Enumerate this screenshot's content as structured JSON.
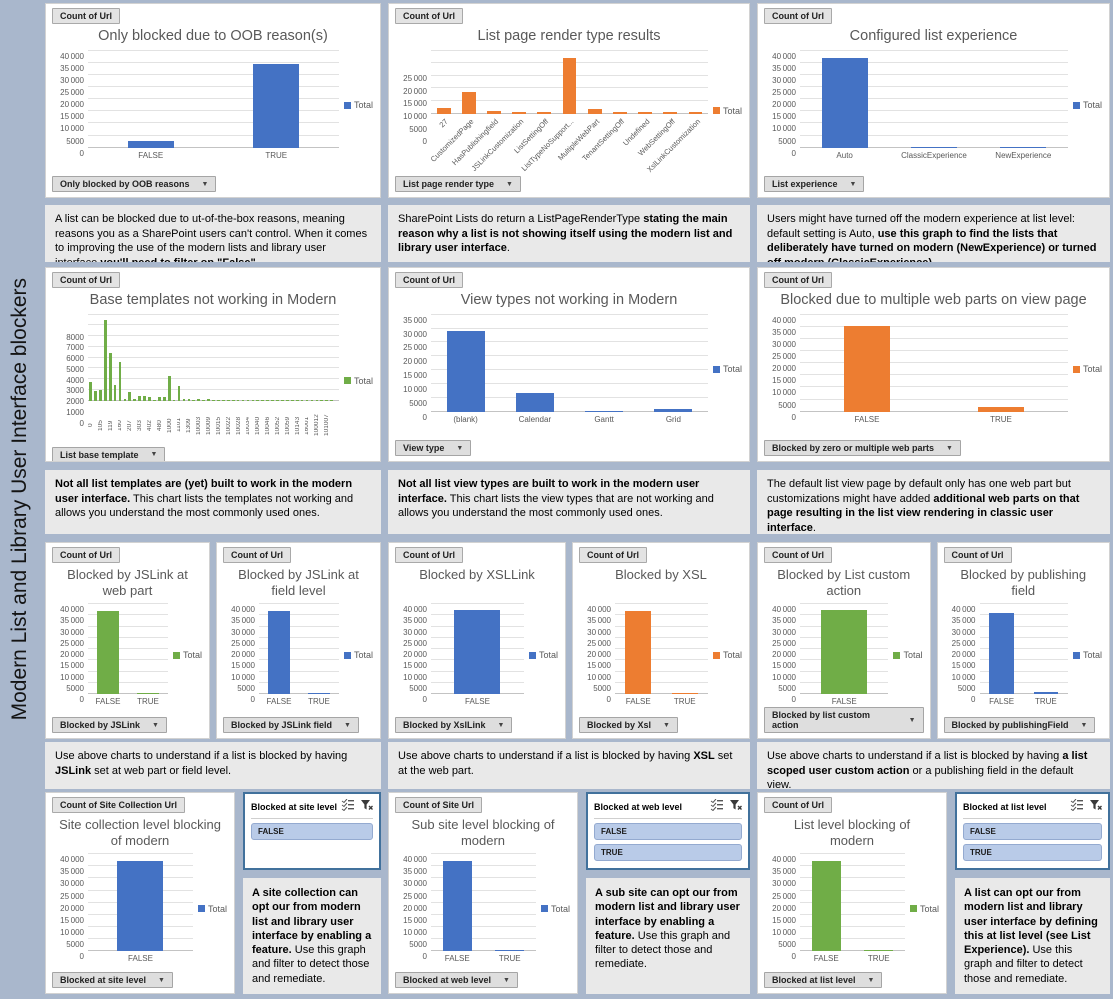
{
  "page": {
    "title": "Modern List and Library User Interface blockers"
  },
  "chart_data": [
    {
      "type": "bar",
      "slug": "only-blocked-oob",
      "field_button": "Count of Url",
      "title": "Only blocked due to OOB reason(s)",
      "legend": "Total",
      "color": "#4472c4",
      "ylim": 40000,
      "ystep": 5000,
      "categories": [
        "FALSE",
        "TRUE"
      ],
      "values": [
        2800,
        34500
      ],
      "filter": "Only blocked by OOB reasons"
    },
    {
      "type": "bar",
      "slug": "list-page-render-type",
      "field_button": "Count of Url",
      "title": "List page render type results",
      "legend": "Total",
      "color": "#ed7d31",
      "ylim": 25000,
      "ystep": 5000,
      "categories": [
        "27",
        "CustomizedPage",
        "HasPublishingfield",
        "JSLinkCustomization",
        "ListSettingOff",
        "ListTypeNoSupport...",
        "MultipleWebPart",
        "TenantSettingOff",
        "Undefined",
        "WebSettingOff",
        "XslLinkCustomization"
      ],
      "values": [
        2300,
        8500,
        1000,
        550,
        550,
        22000,
        1800,
        550,
        550,
        550,
        550
      ],
      "filter": "List page render type"
    },
    {
      "type": "bar",
      "slug": "configured-list-experience",
      "field_button": "Count of Url",
      "title": "Configured list experience",
      "legend": "Total",
      "color": "#4472c4",
      "ylim": 40000,
      "ystep": 5000,
      "categories": [
        "Auto",
        "ClassicExperience",
        "NewExperience"
      ],
      "values": [
        37000,
        150,
        100
      ],
      "filter": "List experience"
    },
    {
      "type": "bar",
      "slug": "base-templates",
      "field_button": "Count of Url",
      "title": "Base templates not working in Modern",
      "legend": "Total",
      "color": "#70ad47",
      "ylim": 8000,
      "ystep": 1000,
      "categories": [
        "0",
        "",
        "105",
        "",
        "119",
        "",
        "160",
        "",
        "207",
        "",
        "303",
        "",
        "402",
        "",
        "480",
        "",
        "1000",
        "",
        "1101",
        "",
        "1309",
        "",
        "10003",
        "",
        "10009",
        "",
        "10015",
        "",
        "10022",
        "",
        "10028",
        "",
        "10034",
        "",
        "10040",
        "",
        "10046",
        "",
        "10052",
        "",
        "10059",
        "",
        "10143",
        "",
        "16001",
        "",
        "100012",
        "",
        "101007",
        "",
        ""
      ],
      "values": [
        1750,
        900,
        1000,
        7500,
        4450,
        1450,
        3600,
        150,
        800,
        120,
        450,
        420,
        380,
        100,
        320,
        300,
        2300,
        90,
        1400,
        200,
        120,
        80,
        200,
        60,
        180,
        70,
        90,
        60,
        100,
        50,
        80,
        60,
        70,
        50,
        90,
        60,
        80,
        50,
        70,
        60,
        90,
        50,
        80,
        60,
        70,
        50,
        60,
        50,
        80,
        60
      ],
      "filter": "List base template"
    },
    {
      "type": "bar",
      "slug": "view-types",
      "field_button": "Count of Url",
      "title": "View types not working in Modern",
      "legend": "Total",
      "color": "#4472c4",
      "ylim": 35000,
      "ystep": 5000,
      "categories": [
        "(blank)",
        "Calendar",
        "Gantt",
        "Grid"
      ],
      "values": [
        29200,
        6700,
        80,
        800
      ],
      "filter": "View type"
    },
    {
      "type": "bar",
      "slug": "multiple-web-parts",
      "field_button": "Count of Url",
      "title": "Blocked due to multiple web parts on view page",
      "legend": "Total",
      "color": "#ed7d31",
      "ylim": 40000,
      "ystep": 5000,
      "categories": [
        "FALSE",
        "TRUE"
      ],
      "values": [
        35200,
        2100
      ],
      "filter": "Blocked by zero or multiple web parts"
    },
    {
      "type": "bar",
      "slug": "jslink-web-part",
      "field_button": "Count of Url",
      "title": "Blocked by JSLink at web part",
      "legend": "Total",
      "color": "#70ad47",
      "ylim": 40000,
      "ystep": 5000,
      "categories": [
        "FALSE",
        "TRUE"
      ],
      "values": [
        37000,
        80
      ],
      "filter": "Blocked by JSLink"
    },
    {
      "type": "bar",
      "slug": "jslink-field",
      "field_button": "Count of Url",
      "title": "Blocked by JSLink at field level",
      "legend": "Total",
      "color": "#4472c4",
      "ylim": 40000,
      "ystep": 5000,
      "categories": [
        "FALSE",
        "TRUE"
      ],
      "values": [
        37000,
        80
      ],
      "filter": "Blocked by JSLink field"
    },
    {
      "type": "bar",
      "slug": "xsllink",
      "field_button": "Count of Url",
      "title": "Blocked by XSLLink",
      "legend": "Total",
      "color": "#4472c4",
      "ylim": 40000,
      "ystep": 5000,
      "categories": [
        "FALSE"
      ],
      "values": [
        37300
      ],
      "filter": "Blocked by XslLink"
    },
    {
      "type": "bar",
      "slug": "xsl",
      "field_button": "Count of Url",
      "title": "Blocked by XSL",
      "legend": "Total",
      "color": "#ed7d31",
      "ylim": 40000,
      "ystep": 5000,
      "categories": [
        "FALSE",
        "TRUE"
      ],
      "values": [
        37000,
        80
      ],
      "filter": "Blocked by Xsl"
    },
    {
      "type": "bar",
      "slug": "list-custom-action",
      "field_button": "Count of Url",
      "title": "Blocked by List custom action",
      "legend": "Total",
      "color": "#70ad47",
      "ylim": 40000,
      "ystep": 5000,
      "categories": [
        "FALSE"
      ],
      "values": [
        37300
      ],
      "filter": "Blocked by list custom action"
    },
    {
      "type": "bar",
      "slug": "publishing-field",
      "field_button": "Count of Url",
      "title": "Blocked by publishing field",
      "legend": "Total",
      "color": "#4472c4",
      "ylim": 40000,
      "ystep": 5000,
      "categories": [
        "FALSE",
        "TRUE"
      ],
      "values": [
        36200,
        1100
      ],
      "filter": "Blocked by publishingField"
    },
    {
      "type": "bar",
      "slug": "site-collection-blocking",
      "field_button": "Count of Site Collection Url",
      "title": "Site collection level blocking of modern",
      "legend": "Total",
      "color": "#4472c4",
      "ylim": 40000,
      "ystep": 5000,
      "categories": [
        "FALSE"
      ],
      "values": [
        37000
      ],
      "filter": "Blocked at site level"
    },
    {
      "type": "bar",
      "slug": "sub-site-blocking",
      "field_button": "Count of Site Url",
      "title": "Sub site level blocking of modern",
      "legend": "Total",
      "color": "#4472c4",
      "ylim": 40000,
      "ystep": 5000,
      "categories": [
        "FALSE",
        "TRUE"
      ],
      "values": [
        37000,
        100
      ],
      "filter": "Blocked at web level"
    },
    {
      "type": "bar",
      "slug": "list-level-blocking",
      "field_button": "Count of Url",
      "title": "List level blocking of modern",
      "legend": "Total",
      "color": "#70ad47",
      "ylim": 40000,
      "ystep": 5000,
      "categories": [
        "FALSE",
        "TRUE"
      ],
      "values": [
        37000,
        100
      ],
      "filter": "Blocked at list level"
    }
  ],
  "notes": [
    {
      "id": "oob",
      "segments": [
        {
          "t": "A list can be blocked due to ut-of-the-box reasons, meaning reasons you as a SharePoint users can't control. When it comes to improving the use of the modern lists and library user interface ",
          "b": false
        },
        {
          "t": "you'll need to filter on \"False\"",
          "b": true
        },
        {
          "t": ".",
          "b": false
        }
      ]
    },
    {
      "id": "render-type",
      "segments": [
        {
          "t": "SharePoint Lists do return a ListPageRenderType ",
          "b": false
        },
        {
          "t": "stating the main reason why a list is not showing itself using the modern list and library user interface",
          "b": true
        },
        {
          "t": ".",
          "b": false
        }
      ]
    },
    {
      "id": "list-experience",
      "segments": [
        {
          "t": "Users might have turned off the modern experience at list level: default setting is Auto, ",
          "b": false
        },
        {
          "t": "use this graph to find the lists that deliberately have turned on modern (NewExperience) or turned off modern (ClassicExperience).",
          "b": true
        }
      ]
    },
    {
      "id": "base-templates",
      "segments": [
        {
          "t": "Not all list templates are (yet) built to work in the modern user interface.",
          "b": true
        },
        {
          "t": " This chart lists the templates not working and allows you understand the most commonly used ones.",
          "b": false
        }
      ]
    },
    {
      "id": "view-types",
      "segments": [
        {
          "t": "Not all list view types are built to work in the modern user interface.",
          "b": true
        },
        {
          "t": " This chart lists the view types that are not working and allows you understand the most commonly used ones.",
          "b": false
        }
      ]
    },
    {
      "id": "web-parts",
      "segments": [
        {
          "t": "The default list view page by default only has one web part but customizations might have added ",
          "b": false
        },
        {
          "t": "additional web parts on that page resulting in the list view rendering in classic user interface",
          "b": true
        },
        {
          "t": ".",
          "b": false
        }
      ]
    },
    {
      "id": "jslink",
      "segments": [
        {
          "t": "Use above charts to understand if a list is blocked by having ",
          "b": false
        },
        {
          "t": "JSLink",
          "b": true
        },
        {
          "t": " set at web part or field level.",
          "b": false
        }
      ]
    },
    {
      "id": "xsl",
      "segments": [
        {
          "t": "Use above charts to understand if a list is blocked by having ",
          "b": false
        },
        {
          "t": "XSL",
          "b": true
        },
        {
          "t": " set at the web part.",
          "b": false
        }
      ]
    },
    {
      "id": "custom-action",
      "segments": [
        {
          "t": "Use above charts to understand if a list is blocked by having ",
          "b": false
        },
        {
          "t": "a list scoped user custom action",
          "b": true
        },
        {
          "t": " or a publishing field in the default view.",
          "b": false
        }
      ]
    },
    {
      "id": "site-collection",
      "segments": [
        {
          "t": "A site collection can opt our from modern list and library user interface by enabling a feature.",
          "b": true
        },
        {
          "t": " Use this graph and filter to detect those and remediate.",
          "b": false
        }
      ]
    },
    {
      "id": "sub-site",
      "segments": [
        {
          "t": "A sub site can opt our from modern list and library user interface by enabling a feature.",
          "b": true
        },
        {
          "t": " Use this graph and filter to detect those and remediate.",
          "b": false
        }
      ]
    },
    {
      "id": "list-level",
      "segments": [
        {
          "t": "A list can opt our from modern list and library user interface by defining this at list level (see List Experience).",
          "b": true
        },
        {
          "t": " Use this graph and filter to detect those and remediate.",
          "b": false
        }
      ]
    }
  ],
  "slicers": [
    {
      "id": "site-level",
      "header": "Blocked at site level",
      "items": [
        {
          "label": "FALSE",
          "selected": true
        }
      ]
    },
    {
      "id": "web-level",
      "header": "Blocked at web level",
      "items": [
        {
          "label": "FALSE",
          "selected": true
        },
        {
          "label": "TRUE",
          "selected": true
        }
      ]
    },
    {
      "id": "list-level",
      "header": "Blocked at list level",
      "items": [
        {
          "label": "FALSE",
          "selected": true
        },
        {
          "label": "TRUE",
          "selected": true
        }
      ]
    }
  ],
  "colors": {
    "blue": "#4472c4",
    "orange": "#ed7d31",
    "green": "#70ad47",
    "page_bg": "#a9b7cc",
    "note_bg": "#e9e9e9",
    "slicer_border": "#41719c",
    "slicer_item_bg": "#b9cbe8"
  }
}
